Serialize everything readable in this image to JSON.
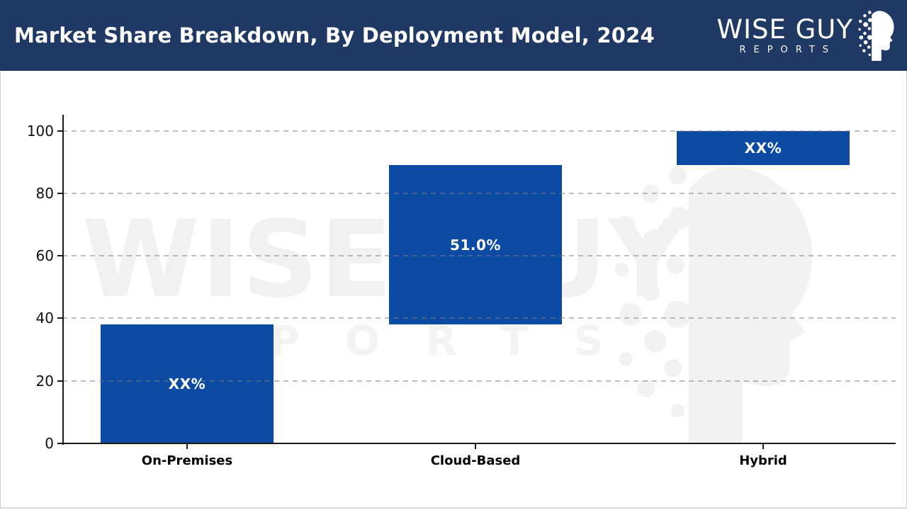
{
  "header": {
    "title": "Market Share Breakdown, By Deployment Model, 2024",
    "bg_color": "#1f3864",
    "logo": {
      "brand_line1": "WISE GUY",
      "brand_line2": "REPORTS"
    }
  },
  "watermark": {
    "line1": "WISE GUY",
    "line2": "REPORTS"
  },
  "chart_data": {
    "type": "bar",
    "variant": "floating-waterfall",
    "title": "Market Share Breakdown, By Deployment Model, 2024",
    "categories": [
      "On-Premises",
      "Cloud-Based",
      "Hybrid"
    ],
    "segments": [
      {
        "category": "On-Premises",
        "start": 0,
        "end": 38,
        "value_label": "XX%"
      },
      {
        "category": "Cloud-Based",
        "start": 38,
        "end": 89,
        "value_label": "51.0%"
      },
      {
        "category": "Hybrid",
        "start": 89,
        "end": 100,
        "value_label": "XX%"
      }
    ],
    "yticks": [
      0,
      20,
      40,
      60,
      80,
      100
    ],
    "ylim": [
      0,
      105
    ],
    "xlabel": "",
    "ylabel": "",
    "grid": "horizontal dashed, drawn over bars",
    "legend": "none",
    "colors": {
      "bar": "#0c4ba3",
      "bar_label": "#ffffff",
      "grid": "#bdbdbd",
      "axis": "#1a1a1a",
      "header_bg": "#1f3864",
      "watermark": "#f1f1f1"
    }
  }
}
